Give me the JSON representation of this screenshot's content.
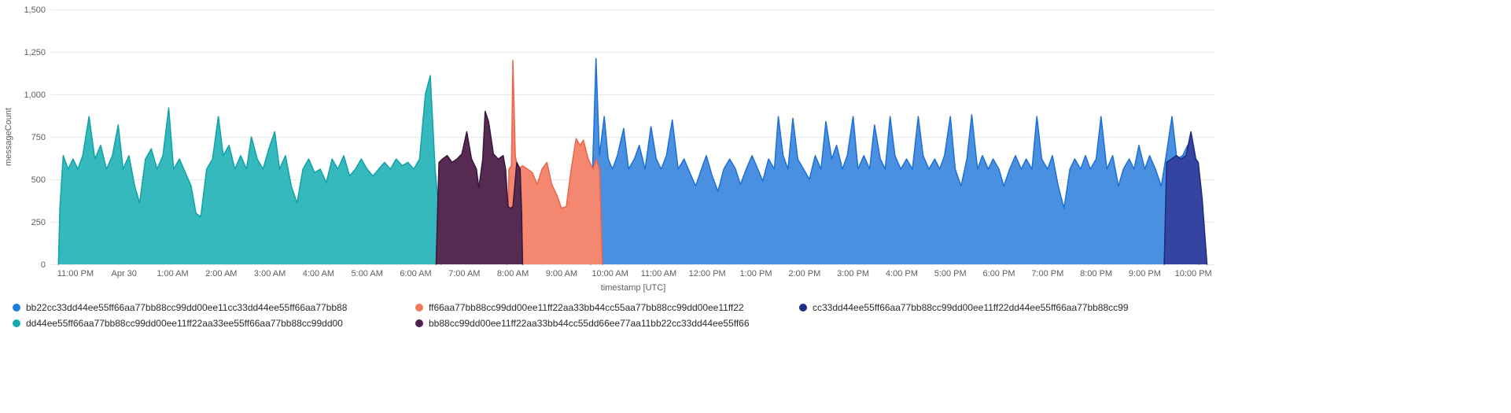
{
  "chart_data": {
    "type": "area",
    "title": "",
    "xlabel": "timestamp [UTC]",
    "ylabel": "messageCount",
    "legend_position": "bottom",
    "grid": "horizontal",
    "y_domain": [
      0,
      1500
    ],
    "x_domain": [
      0.5,
      24.45
    ],
    "y_ticks": [
      {
        "v": 0,
        "label": "0"
      },
      {
        "v": 250,
        "label": "250"
      },
      {
        "v": 500,
        "label": "500"
      },
      {
        "v": 750,
        "label": "750"
      },
      {
        "v": 1000,
        "label": "1,000"
      },
      {
        "v": 1250,
        "label": "1,250"
      },
      {
        "v": 1500,
        "label": "1,500"
      }
    ],
    "x_ticks": [
      {
        "t": 1,
        "label": "11:00 PM"
      },
      {
        "t": 2,
        "label": "Apr 30"
      },
      {
        "t": 3,
        "label": "1:00 AM"
      },
      {
        "t": 4,
        "label": "2:00 AM"
      },
      {
        "t": 5,
        "label": "3:00 AM"
      },
      {
        "t": 6,
        "label": "4:00 AM"
      },
      {
        "t": 7,
        "label": "5:00 AM"
      },
      {
        "t": 8,
        "label": "6:00 AM"
      },
      {
        "t": 9,
        "label": "7:00 AM"
      },
      {
        "t": 10,
        "label": "8:00 AM"
      },
      {
        "t": 11,
        "label": "9:00 AM"
      },
      {
        "t": 12,
        "label": "10:00 AM"
      },
      {
        "t": 13,
        "label": "11:00 AM"
      },
      {
        "t": 14,
        "label": "12:00 PM"
      },
      {
        "t": 15,
        "label": "1:00 PM"
      },
      {
        "t": 16,
        "label": "2:00 PM"
      },
      {
        "t": 17,
        "label": "3:00 PM"
      },
      {
        "t": 18,
        "label": "4:00 PM"
      },
      {
        "t": 19,
        "label": "5:00 PM"
      },
      {
        "t": 20,
        "label": "6:00 PM"
      },
      {
        "t": 21,
        "label": "7:00 PM"
      },
      {
        "t": 22,
        "label": "8:00 PM"
      },
      {
        "t": 23,
        "label": "9:00 PM"
      },
      {
        "t": 24,
        "label": "10:00 PM"
      }
    ],
    "series": [
      {
        "id": "teal",
        "name": "dd44ee55ff66aa77bb88cc99dd00ee11ff22aa33ee55ff66aa77bb88cc99dd00",
        "fill": "#35b9bd",
        "stroke": "#0fa3a8",
        "legend_color": "#17a9ad",
        "points": [
          [
            0.65,
            0
          ],
          [
            0.68,
            330
          ],
          [
            0.75,
            640
          ],
          [
            0.85,
            560
          ],
          [
            0.95,
            620
          ],
          [
            1.05,
            560
          ],
          [
            1.15,
            640
          ],
          [
            1.28,
            870
          ],
          [
            1.4,
            620
          ],
          [
            1.52,
            700
          ],
          [
            1.64,
            560
          ],
          [
            1.76,
            640
          ],
          [
            1.88,
            820
          ],
          [
            1.98,
            560
          ],
          [
            2.1,
            640
          ],
          [
            2.22,
            460
          ],
          [
            2.32,
            360
          ],
          [
            2.44,
            620
          ],
          [
            2.56,
            680
          ],
          [
            2.68,
            560
          ],
          [
            2.8,
            640
          ],
          [
            2.92,
            920
          ],
          [
            3.02,
            560
          ],
          [
            3.14,
            620
          ],
          [
            3.26,
            540
          ],
          [
            3.38,
            460
          ],
          [
            3.48,
            300
          ],
          [
            3.58,
            280
          ],
          [
            3.7,
            560
          ],
          [
            3.82,
            620
          ],
          [
            3.94,
            870
          ],
          [
            4.04,
            640
          ],
          [
            4.16,
            700
          ],
          [
            4.28,
            560
          ],
          [
            4.4,
            640
          ],
          [
            4.52,
            560
          ],
          [
            4.62,
            750
          ],
          [
            4.74,
            620
          ],
          [
            4.86,
            560
          ],
          [
            4.98,
            680
          ],
          [
            5.1,
            780
          ],
          [
            5.2,
            560
          ],
          [
            5.32,
            640
          ],
          [
            5.44,
            460
          ],
          [
            5.56,
            360
          ],
          [
            5.68,
            560
          ],
          [
            5.8,
            620
          ],
          [
            5.92,
            540
          ],
          [
            6.04,
            560
          ],
          [
            6.16,
            480
          ],
          [
            6.28,
            620
          ],
          [
            6.4,
            560
          ],
          [
            6.52,
            640
          ],
          [
            6.64,
            520
          ],
          [
            6.76,
            560
          ],
          [
            6.88,
            620
          ],
          [
            7.0,
            560
          ],
          [
            7.12,
            520
          ],
          [
            7.24,
            560
          ],
          [
            7.36,
            600
          ],
          [
            7.48,
            560
          ],
          [
            7.6,
            620
          ],
          [
            7.72,
            580
          ],
          [
            7.84,
            600
          ],
          [
            7.96,
            560
          ],
          [
            8.08,
            620
          ],
          [
            8.2,
            1000
          ],
          [
            8.3,
            1110
          ],
          [
            8.4,
            560
          ],
          [
            8.48,
            300
          ],
          [
            8.52,
            0
          ]
        ]
      },
      {
        "id": "blue",
        "name": "bb22cc33dd44ee55ff66aa77bb88cc99dd00ee11cc33dd44ee55ff66aa77bb88",
        "fill": "#4a90e0",
        "stroke": "#1e6fd6",
        "legend_color": "#1e7bd8",
        "points": [
          [
            11.6,
            0
          ],
          [
            11.64,
            560
          ],
          [
            11.71,
            1210
          ],
          [
            11.78,
            640
          ],
          [
            11.88,
            870
          ],
          [
            11.96,
            620
          ],
          [
            12.05,
            560
          ],
          [
            12.15,
            640
          ],
          [
            12.28,
            800
          ],
          [
            12.38,
            560
          ],
          [
            12.5,
            620
          ],
          [
            12.6,
            700
          ],
          [
            12.72,
            560
          ],
          [
            12.84,
            810
          ],
          [
            12.95,
            620
          ],
          [
            13.05,
            560
          ],
          [
            13.16,
            640
          ],
          [
            13.28,
            850
          ],
          [
            13.4,
            560
          ],
          [
            13.52,
            620
          ],
          [
            13.64,
            540
          ],
          [
            13.76,
            460
          ],
          [
            13.88,
            560
          ],
          [
            13.98,
            640
          ],
          [
            14.1,
            520
          ],
          [
            14.22,
            430
          ],
          [
            14.34,
            560
          ],
          [
            14.46,
            620
          ],
          [
            14.58,
            560
          ],
          [
            14.68,
            470
          ],
          [
            14.8,
            560
          ],
          [
            14.92,
            640
          ],
          [
            15.04,
            560
          ],
          [
            15.14,
            490
          ],
          [
            15.26,
            620
          ],
          [
            15.38,
            560
          ],
          [
            15.46,
            870
          ],
          [
            15.56,
            640
          ],
          [
            15.66,
            560
          ],
          [
            15.76,
            860
          ],
          [
            15.86,
            620
          ],
          [
            15.98,
            560
          ],
          [
            16.1,
            500
          ],
          [
            16.22,
            640
          ],
          [
            16.34,
            560
          ],
          [
            16.44,
            840
          ],
          [
            16.56,
            620
          ],
          [
            16.66,
            700
          ],
          [
            16.78,
            560
          ],
          [
            16.88,
            640
          ],
          [
            17.0,
            870
          ],
          [
            17.1,
            560
          ],
          [
            17.22,
            640
          ],
          [
            17.34,
            560
          ],
          [
            17.44,
            820
          ],
          [
            17.56,
            620
          ],
          [
            17.66,
            560
          ],
          [
            17.76,
            870
          ],
          [
            17.86,
            640
          ],
          [
            17.98,
            560
          ],
          [
            18.1,
            620
          ],
          [
            18.22,
            560
          ],
          [
            18.34,
            870
          ],
          [
            18.44,
            640
          ],
          [
            18.56,
            560
          ],
          [
            18.68,
            620
          ],
          [
            18.78,
            560
          ],
          [
            18.88,
            640
          ],
          [
            19.0,
            870
          ],
          [
            19.1,
            560
          ],
          [
            19.22,
            460
          ],
          [
            19.34,
            620
          ],
          [
            19.44,
            880
          ],
          [
            19.56,
            560
          ],
          [
            19.66,
            640
          ],
          [
            19.78,
            560
          ],
          [
            19.88,
            620
          ],
          [
            20.0,
            560
          ],
          [
            20.1,
            460
          ],
          [
            20.22,
            560
          ],
          [
            20.34,
            640
          ],
          [
            20.46,
            560
          ],
          [
            20.56,
            620
          ],
          [
            20.68,
            560
          ],
          [
            20.78,
            870
          ],
          [
            20.88,
            620
          ],
          [
            21.0,
            560
          ],
          [
            21.1,
            640
          ],
          [
            21.22,
            460
          ],
          [
            21.34,
            330
          ],
          [
            21.46,
            560
          ],
          [
            21.56,
            620
          ],
          [
            21.68,
            560
          ],
          [
            21.78,
            640
          ],
          [
            21.88,
            560
          ],
          [
            22.0,
            620
          ],
          [
            22.1,
            870
          ],
          [
            22.22,
            560
          ],
          [
            22.34,
            640
          ],
          [
            22.46,
            460
          ],
          [
            22.56,
            560
          ],
          [
            22.68,
            620
          ],
          [
            22.78,
            560
          ],
          [
            22.88,
            700
          ],
          [
            23.0,
            560
          ],
          [
            23.1,
            640
          ],
          [
            23.22,
            560
          ],
          [
            23.34,
            460
          ],
          [
            23.44,
            640
          ],
          [
            23.56,
            870
          ],
          [
            23.66,
            620
          ],
          [
            23.78,
            640
          ],
          [
            23.88,
            700
          ],
          [
            23.96,
            640
          ],
          [
            24.04,
            580
          ],
          [
            24.1,
            560
          ],
          [
            24.12,
            0
          ]
        ]
      },
      {
        "id": "salmon",
        "name": "ff66aa77bb88cc99dd00ee11ff22aa33bb44cc55aa77bb88cc99dd00ee11ff22",
        "fill": "#f48770",
        "stroke": "#ec644a",
        "legend_color": "#f2785f",
        "points": [
          [
            9.88,
            0
          ],
          [
            9.92,
            560
          ],
          [
            9.97,
            580
          ],
          [
            10.0,
            1200
          ],
          [
            10.05,
            640
          ],
          [
            10.1,
            560
          ],
          [
            10.2,
            580
          ],
          [
            10.3,
            560
          ],
          [
            10.4,
            540
          ],
          [
            10.5,
            470
          ],
          [
            10.6,
            560
          ],
          [
            10.7,
            600
          ],
          [
            10.8,
            470
          ],
          [
            10.9,
            410
          ],
          [
            11.0,
            330
          ],
          [
            11.1,
            340
          ],
          [
            11.2,
            560
          ],
          [
            11.3,
            740
          ],
          [
            11.38,
            700
          ],
          [
            11.45,
            730
          ],
          [
            11.55,
            620
          ],
          [
            11.65,
            560
          ],
          [
            11.72,
            620
          ],
          [
            11.78,
            560
          ],
          [
            11.81,
            300
          ],
          [
            11.84,
            0
          ]
        ]
      },
      {
        "id": "purple",
        "name": "bb88cc99dd00ee11ff22aa33bb44cc55dd66ee77aa11bb22cc33dd44ee55ff66",
        "fill": "#572a51",
        "stroke": "#38173a",
        "legend_color": "#50204c",
        "points": [
          [
            8.42,
            0
          ],
          [
            8.48,
            600
          ],
          [
            8.55,
            620
          ],
          [
            8.65,
            640
          ],
          [
            8.75,
            600
          ],
          [
            8.85,
            620
          ],
          [
            8.95,
            650
          ],
          [
            9.05,
            780
          ],
          [
            9.15,
            620
          ],
          [
            9.25,
            560
          ],
          [
            9.3,
            450
          ],
          [
            9.38,
            620
          ],
          [
            9.43,
            900
          ],
          [
            9.5,
            840
          ],
          [
            9.6,
            650
          ],
          [
            9.7,
            620
          ],
          [
            9.8,
            640
          ],
          [
            9.85,
            560
          ],
          [
            9.9,
            340
          ],
          [
            9.95,
            330
          ],
          [
            10.0,
            340
          ],
          [
            10.08,
            600
          ],
          [
            10.15,
            560
          ],
          [
            10.18,
            300
          ],
          [
            10.2,
            0
          ]
        ]
      },
      {
        "id": "navy",
        "name": "cc33dd44ee55ff66aa77bb88cc99dd00ee11ff22dd44ee55ff66aa77bb88cc99",
        "fill": "#3544a0",
        "stroke": "#1b2a80",
        "legend_color": "#1c2e85",
        "points": [
          [
            23.4,
            0
          ],
          [
            23.45,
            600
          ],
          [
            23.55,
            620
          ],
          [
            23.65,
            640
          ],
          [
            23.75,
            620
          ],
          [
            23.85,
            640
          ],
          [
            23.95,
            780
          ],
          [
            24.05,
            620
          ],
          [
            24.1,
            600
          ],
          [
            24.18,
            390
          ],
          [
            24.28,
            0
          ]
        ]
      }
    ]
  }
}
